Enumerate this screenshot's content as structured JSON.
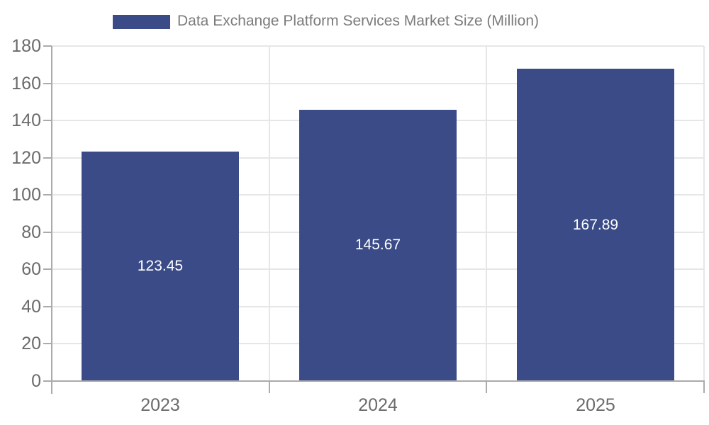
{
  "chart_data": {
    "type": "bar",
    "title": "Data Exchange Platform Services Market Size (Million)",
    "categories": [
      "2023",
      "2024",
      "2025"
    ],
    "values": [
      123.45,
      145.67,
      167.89
    ],
    "value_labels": [
      "123.45",
      "145.67",
      "167.89"
    ],
    "xlabel": "",
    "ylabel": "",
    "ylim": [
      0,
      180
    ],
    "yticks": [
      0,
      20,
      40,
      60,
      80,
      100,
      120,
      140,
      160,
      180
    ],
    "grid": "horizontal gridlines at each y tick, vertical gridlines at category boundaries",
    "legend_position": "top",
    "colors": {
      "bar": "#3A4B87",
      "grid": "#E6E6E6",
      "axis": "#ABABAB",
      "tick_text": "#6B6B6B",
      "legend_text": "#7B7B7B",
      "value_text": "#FFFFFF",
      "background": "#FFFFFF"
    }
  }
}
